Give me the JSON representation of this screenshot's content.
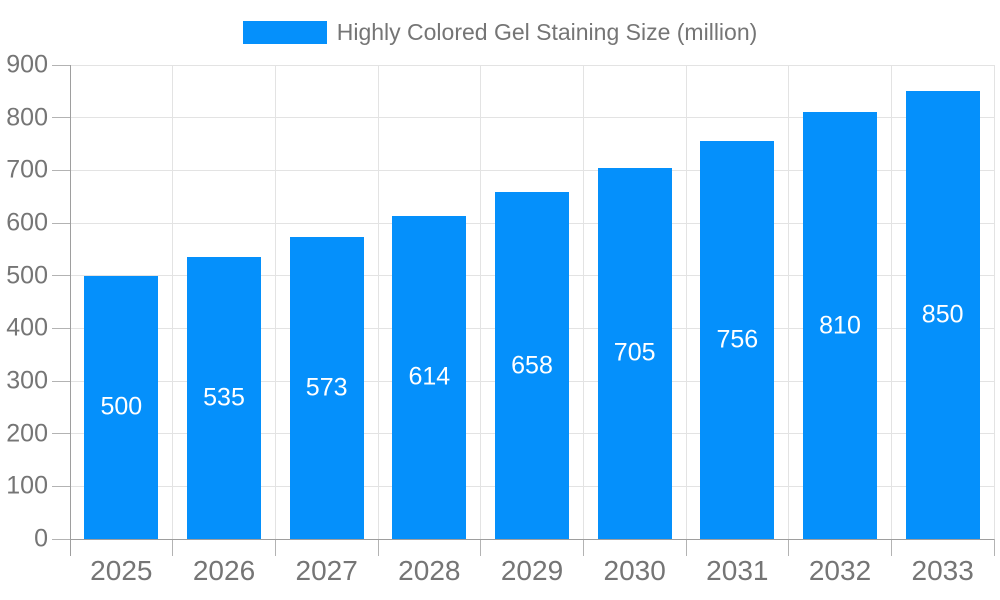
{
  "chart_data": {
    "type": "bar",
    "title": "Highly Colored Gel Staining Size (million)",
    "categories": [
      "2025",
      "2026",
      "2027",
      "2028",
      "2029",
      "2030",
      "2031",
      "2032",
      "2033"
    ],
    "values": [
      500,
      535,
      573,
      614,
      658,
      705,
      756,
      810,
      850
    ],
    "xlabel": "",
    "ylabel": "",
    "ylim": [
      0,
      900
    ],
    "yticks": [
      0,
      100,
      200,
      300,
      400,
      500,
      600,
      700,
      800,
      900
    ],
    "grid": true,
    "legend_position": "top-center",
    "colors": {
      "bar": "#0590FB",
      "value_label": "#ffffff",
      "axis_text": "#757575",
      "axis_line": "#9e9e9e",
      "tick": "#b3b3b3",
      "gridline": "#e3e3e3",
      "background": "#ffffff"
    }
  },
  "legend": {
    "label": "Highly Colored Gel Staining Size (million)",
    "swatch_color": "#0590FB"
  }
}
